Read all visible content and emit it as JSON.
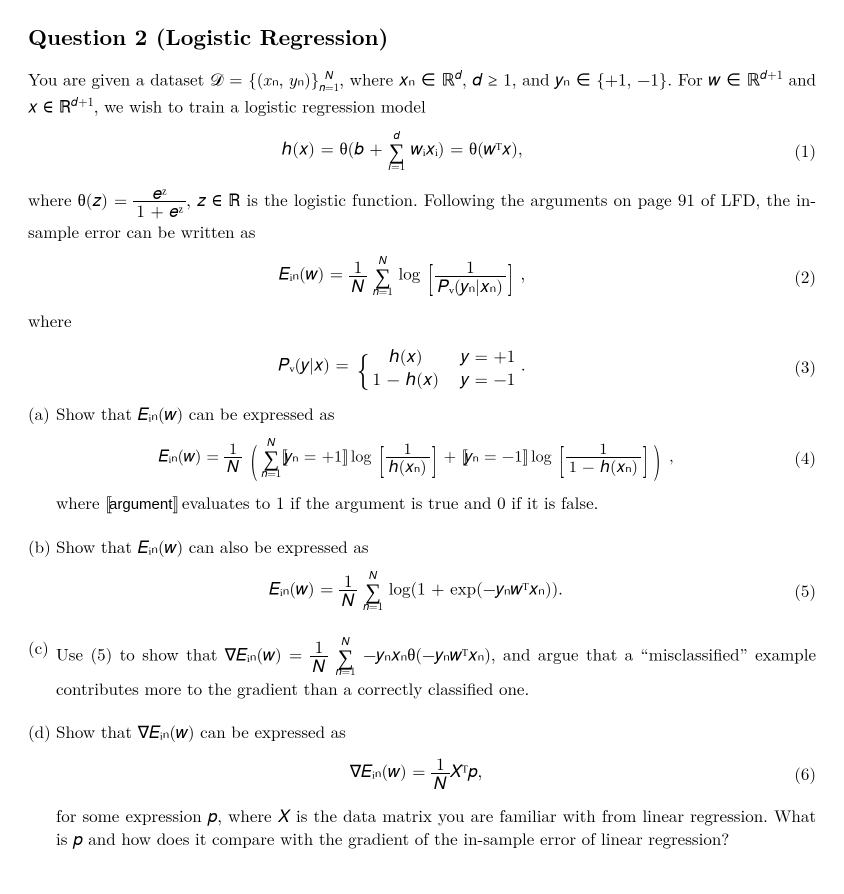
{
  "title": "Question 2 (Logistic Regression)",
  "intro_a": "You are given a dataset 𝒟 = {(𝑥ₙ, 𝑦ₙ)}",
  "intro_a_sup": "𝑁",
  "intro_a_supsub": "𝑛=1",
  "intro_b": ", where 𝑥ₙ ∈ ℝ",
  "intro_b_sup": "𝑑",
  "intro_c": ", 𝑑 ≥ 1, and 𝑦ₙ ∈ {+1, −1}.  For 𝑤 ∈ ℝ",
  "intro_c_sup": "𝑑+1",
  "intro_d": " and 𝑥 ∈ ℝ",
  "intro_d_sup": "𝑑+1",
  "intro_e": ", we wish to train a logistic regression model",
  "eq1_lhs": "ℎ(𝑥) = θ(𝑏 + ",
  "eq1_sum_top": "𝑑",
  "eq1_sum_bot": "𝑖=1",
  "eq1_mid": " 𝑤ᵢ𝑥ᵢ) = θ(𝑤ᵀ𝑥),",
  "eq1_num": "(1)",
  "theta_a": "where θ(𝑧) = ",
  "theta_num": "𝑒ᶻ",
  "theta_den": "1 + 𝑒ᶻ",
  "theta_b": ", 𝑧 ∈ ℝ is the logistic function.  Following the arguments on page 91 of LFD, the in-sample error can be written as",
  "eq2_lhs": "𝐸ᵢₙ(𝑤) = ",
  "eq2_frac_num": "1",
  "eq2_frac_den": "𝑁",
  "eq2_sum_top": "𝑁",
  "eq2_sum_bot": "𝑛=1",
  "eq2_log": " log ",
  "eq2_inner_num": "1",
  "eq2_inner_den": "𝑃ᵥ(𝑦ₙ|𝑥ₙ)",
  "eq2_tail": " ,",
  "eq2_num": "(2)",
  "where_label": "where",
  "eq3_lhs": "𝑃ᵥ(𝑦|𝑥) = ",
  "eq3_c1a": "ℎ(𝑥)",
  "eq3_c1b": "𝑦 = +1",
  "eq3_c2a": "1 − ℎ(𝑥)",
  "eq3_c2b": "𝑦 = −1",
  "eq3_tail": " .",
  "eq3_num": "(3)",
  "a_label": "(a)",
  "a_text1": "Show that 𝐸ᵢₙ(𝑤) can be expressed as",
  "eq4_lhs": "𝐸ᵢₙ(𝑤) = ",
  "eq4_sum_top": "𝑁",
  "eq4_sum_bot": "𝑛=1",
  "eq4_iver1_a": "⟦",
  "eq4_iver1_b": "𝑦ₙ = +1",
  "eq4_iver1_c": "⟧",
  "eq4_log1": " log ",
  "eq4_f1_num": "1",
  "eq4_f1_den": "ℎ(𝑥ₙ)",
  "eq4_plus": " + ",
  "eq4_iver2_b": "𝑦ₙ = −1",
  "eq4_log2": " log ",
  "eq4_f2_num": "1",
  "eq4_f2_den": "1 − ℎ(𝑥ₙ)",
  "eq4_tail": " ,",
  "eq4_num": "(4)",
  "a_text2a": "where ",
  "a_text2b": "⟦",
  "a_text2c": "argument",
  "a_text2d": "⟧",
  "a_text2e": " evaluates to 1 if the argument is true and 0 if it is false.",
  "b_label": "(b)",
  "b_text1": "Show that 𝐸ᵢₙ(𝑤) can also be expressed as",
  "eq5_lhs": "𝐸ᵢₙ(𝑤) = ",
  "eq5_sum_top": "𝑁",
  "eq5_sum_bot": "𝑛=1",
  "eq5_body": " log(1 + exp(−𝑦ₙ𝑤ᵀ𝑥ₙ)).",
  "eq5_num": "(5)",
  "c_label": "(c)",
  "c_text1": "Use (5) to show that ∇𝐸ᵢₙ(𝑤) = ",
  "c_sum_top": "𝑁",
  "c_sum_bot": "𝑛=1",
  "c_text2": " −𝑦ₙ𝑥ₙθ(−𝑦ₙ𝑤ᵀ𝑥ₙ), and argue that a “misclassified” example contributes more to the gradient than a correctly classified one.",
  "d_label": "(d)",
  "d_text1": "Show that ∇𝐸ᵢₙ(𝑤) can be expressed as",
  "eq6_lhs": "∇𝐸ᵢₙ(𝑤) = ",
  "eq6_body": "𝑋ᵀ𝑝,",
  "eq6_num": "(6)",
  "d_text2": "for some expression 𝑝, where 𝑋 is the data matrix you are familiar with from linear regression. What is 𝑝 and how does it compare with the gradient of the in-sample error of linear regression?"
}
